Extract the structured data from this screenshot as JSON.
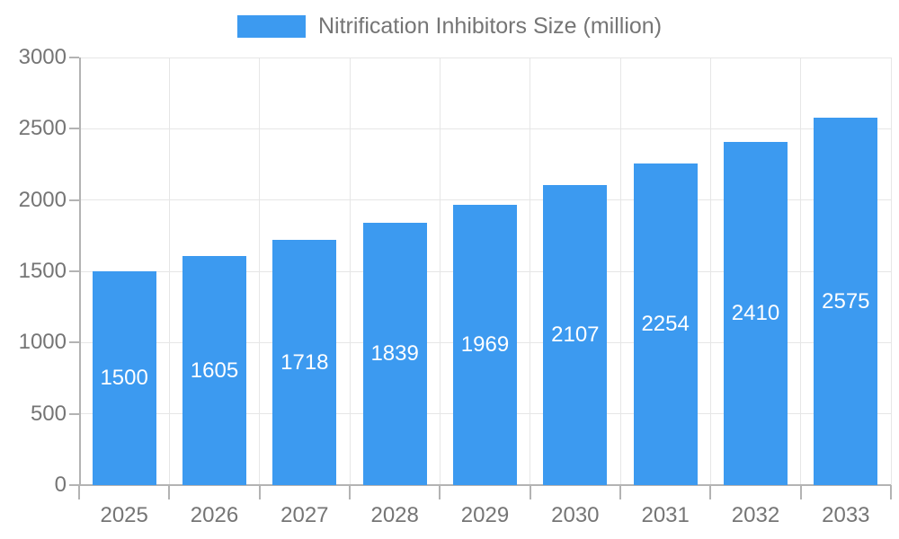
{
  "chart_data": {
    "type": "bar",
    "title": "",
    "legend": {
      "label": "Nitrification Inhibitors Size (million)",
      "position": "top-center"
    },
    "categories": [
      "2025",
      "2026",
      "2027",
      "2028",
      "2029",
      "2030",
      "2031",
      "2032",
      "2033"
    ],
    "series": [
      {
        "name": "Nitrification Inhibitors Size (million)",
        "values": [
          1500,
          1605,
          1718,
          1839,
          1969,
          2107,
          2254,
          2410,
          2575
        ]
      }
    ],
    "data_labels_shown": true,
    "xlabel": "",
    "ylabel": "",
    "ylim": [
      0,
      3000
    ],
    "ytick_step": 500,
    "ytick_labels": [
      "0",
      "500",
      "1000",
      "1500",
      "2000",
      "2500",
      "3000"
    ],
    "grid": true,
    "legend_position": "top"
  },
  "colors": {
    "bar": "#3C9AF0",
    "bar_label": "#ffffff",
    "axis_text": "#757575",
    "axis_line": "#b3b3b3",
    "gridline": "#e6e6e6",
    "background": "#ffffff"
  }
}
